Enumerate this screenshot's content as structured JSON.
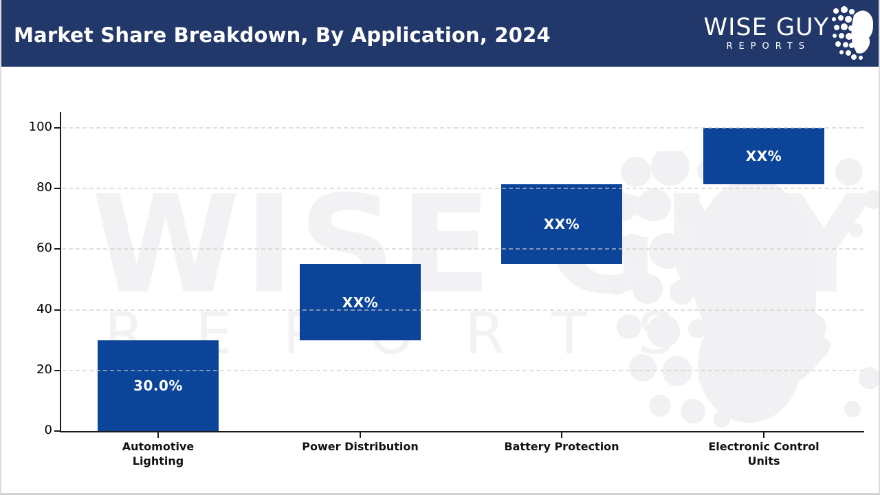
{
  "header": {
    "title": "Market Share Breakdown, By Application, 2024",
    "logo": {
      "line1": "WISE GUY",
      "line2": "REPORTS"
    }
  },
  "watermark": {
    "line1": "WISE GUY",
    "line2": "REPORTS"
  },
  "chart_data": {
    "type": "bar",
    "subtype": "waterfall-breakdown",
    "title": "Market Share Breakdown, By Application, 2024",
    "categories": [
      "Automotive Lighting",
      "Power Distribution",
      "Battery Protection",
      "Electronic Control Units"
    ],
    "tick_lines": [
      [
        "Automotive",
        "Lighting"
      ],
      [
        "Power Distribution"
      ],
      [
        "Battery Protection"
      ],
      [
        "Electronic Control",
        "Units"
      ]
    ],
    "segments": [
      {
        "start": 0,
        "end": 30,
        "label": "30.0%"
      },
      {
        "start": 30,
        "end": 55,
        "label": "XX%"
      },
      {
        "start": 55,
        "end": 81.5,
        "label": "XX%"
      },
      {
        "start": 81.5,
        "end": 100,
        "label": "XX%"
      }
    ],
    "ylim": [
      0,
      100
    ],
    "yticks": [
      0,
      20,
      40,
      60,
      80,
      100
    ],
    "xlabel": "",
    "ylabel": "",
    "grid": "horizontal-dashed",
    "legend": "none",
    "bar_color": "#0B4499",
    "header_color": "#22386B"
  }
}
